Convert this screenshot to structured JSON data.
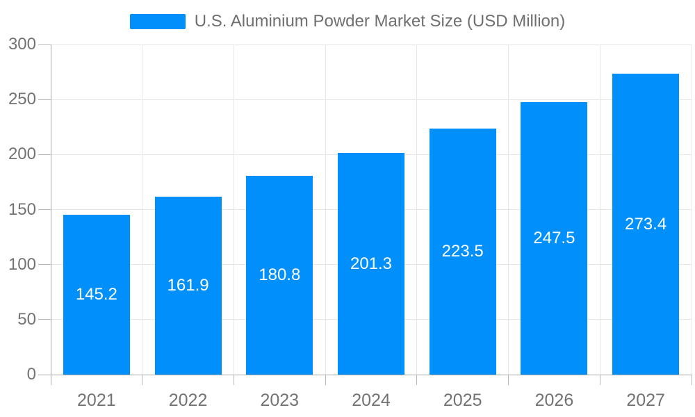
{
  "chart_data": {
    "type": "bar",
    "title": "",
    "legend": {
      "label": "U.S. Aluminium Powder Market Size (USD Million)",
      "position": "top"
    },
    "categories": [
      "2021",
      "2022",
      "2023",
      "2024",
      "2025",
      "2026",
      "2027"
    ],
    "series": [
      {
        "name": "U.S. Aluminium Powder Market Size (USD Million)",
        "values": [
          145.2,
          161.9,
          180.8,
          201.3,
          223.5,
          247.5,
          273.4
        ]
      }
    ],
    "data_labels": [
      "145.2",
      "161.9",
      "180.8",
      "201.3",
      "223.5",
      "247.5",
      "273.4"
    ],
    "xlabel": "",
    "ylabel": "",
    "ylim": [
      0,
      300
    ],
    "y_ticks": [
      0,
      50,
      100,
      150,
      200,
      250,
      300
    ],
    "grid": true,
    "colors": {
      "bar": "#008ffb",
      "data_label": "#ffffff",
      "axis_text": "#737373",
      "legend_text": "#6f6f6f",
      "grid": "#e7e7e7",
      "axis_line": "#a8a8a8",
      "tick": "#b8b8b8",
      "background": "#ffffff"
    }
  }
}
